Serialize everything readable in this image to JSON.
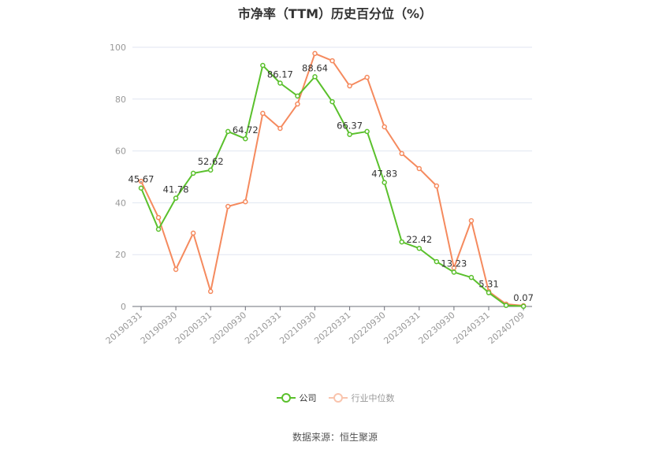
{
  "title": "市净率（TTM）历史百分位（%）",
  "legend": {
    "company_label": "公司",
    "industry_label": "行业中位数"
  },
  "source": "数据来源：恒生聚源",
  "colors": {
    "company": "#5ac02c",
    "industry": "#f58a5e",
    "grid": "#e0e6f1",
    "axis": "#6e7079",
    "tick_label": "#999999",
    "data_label": "#333333"
  },
  "chart_data": {
    "type": "line",
    "title": "市净率（TTM）历史百分位（%）",
    "xlabel": "",
    "ylabel": "",
    "ylim": [
      0,
      100
    ],
    "yticks": [
      0,
      20,
      40,
      60,
      80,
      100
    ],
    "grid": true,
    "legend_position": "bottom",
    "x_tick_labels": [
      "20190331",
      "20190930",
      "20200331",
      "20200930",
      "20210331",
      "20210930",
      "20220331",
      "20220930",
      "20230331",
      "20230930",
      "20240331",
      "20240709"
    ],
    "x": [
      "20190331",
      "20190630",
      "20190930",
      "20191231",
      "20200331",
      "20200630",
      "20200930",
      "20201231",
      "20210331",
      "20210630",
      "20210930",
      "20211231",
      "20220331",
      "20220630",
      "20220930",
      "20221231",
      "20230331",
      "20230630",
      "20230930",
      "20231231",
      "20240331",
      "20240630",
      "20240709"
    ],
    "series": [
      {
        "name": "公司",
        "values": [
          45.67,
          29.8,
          41.78,
          51.4,
          52.62,
          67.5,
          64.72,
          93.0,
          86.17,
          81.2,
          88.64,
          79.0,
          66.37,
          67.5,
          47.83,
          24.9,
          22.42,
          17.3,
          13.23,
          11.2,
          5.31,
          0.4,
          0.07
        ],
        "labeled_indices": [
          0,
          2,
          4,
          6,
          8,
          10,
          12,
          14,
          16,
          18,
          20,
          22
        ]
      },
      {
        "name": "行业中位数",
        "values": [
          48.3,
          34.3,
          14.3,
          28.3,
          5.8,
          38.6,
          40.4,
          74.5,
          68.7,
          78.1,
          97.6,
          94.8,
          85.1,
          88.4,
          69.3,
          59.0,
          53.2,
          46.5,
          14.9,
          33.1,
          5.8,
          0.9,
          0.3
        ]
      }
    ]
  }
}
